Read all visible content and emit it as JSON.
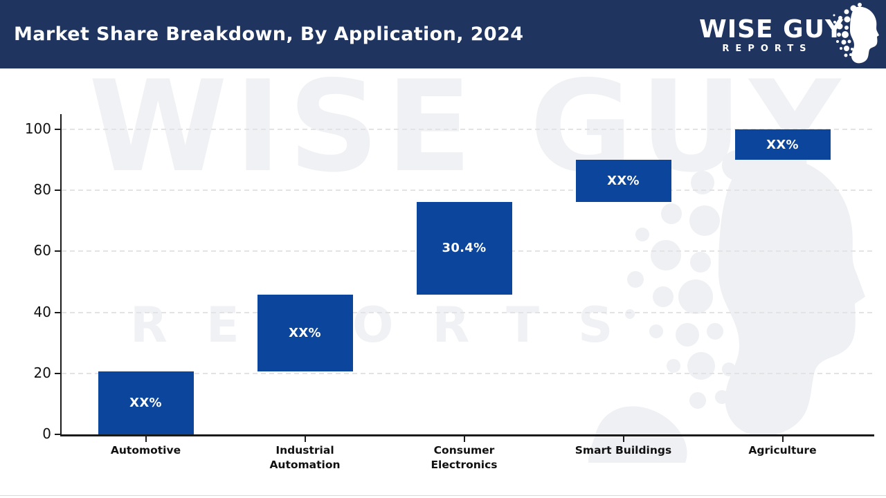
{
  "header": {
    "title": "Market Share Breakdown, By Application, 2024",
    "bg_color": "#1f3560",
    "logo": {
      "line1": "WISE GUY",
      "line2": "REPORTS"
    }
  },
  "watermark": {
    "line1": "WISE GUY",
    "line2": "REPORTS"
  },
  "chart_data": {
    "type": "bar",
    "subtype": "waterfall",
    "title": "Market Share Breakdown, By Application, 2024",
    "categories": [
      "Automotive",
      "Industrial\nAutomation",
      "Consumer\nElectronics",
      "Smart Buildings",
      "Agriculture"
    ],
    "series": [
      {
        "name": "Market Share %",
        "starts": [
          0,
          20.6,
          45.8,
          76.2,
          90.0
        ],
        "values": [
          20.6,
          25.2,
          30.4,
          13.8,
          10.0
        ]
      }
    ],
    "bar_labels": [
      "XX%",
      "XX%",
      "30.4%",
      "XX%",
      "XX%"
    ],
    "xlabel": "",
    "ylabel": "",
    "yticks": [
      0,
      20,
      40,
      60,
      80,
      100
    ],
    "ylim": [
      0,
      100
    ],
    "grid": "horizontal-dashed",
    "legend": "none",
    "bar_color": "#0b459c",
    "grid_color": "#e3e3e3",
    "axis_color": "#1a1a1a"
  }
}
